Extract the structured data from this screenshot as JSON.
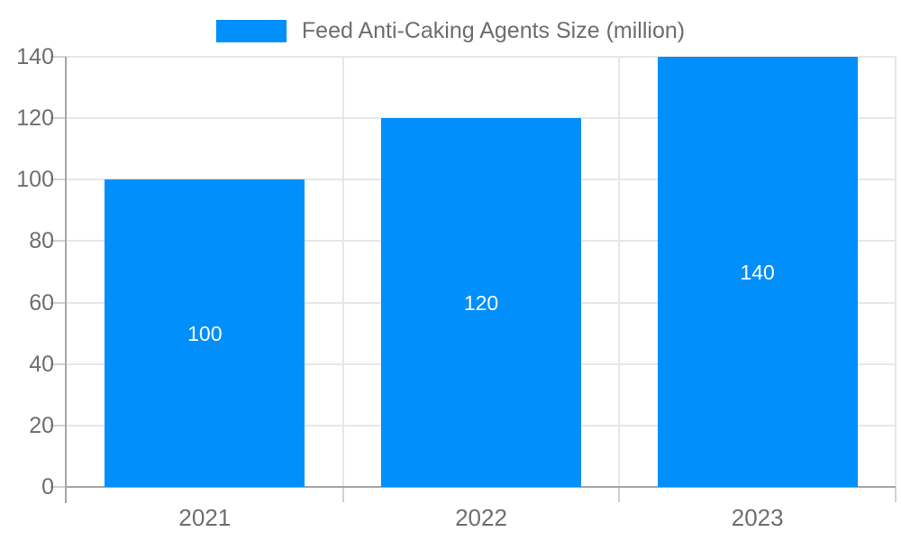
{
  "colors": {
    "bar": "#008FFB",
    "grid": "#E7E7E7",
    "axis": "#A6A6A6",
    "tick": "#D2D2D2",
    "text": "#6E6E6E",
    "value_label": "#FFFFFF",
    "background": "#FFFFFF"
  },
  "legend": {
    "label": "Feed Anti-Caking Agents Size (million)",
    "swatch_color": "#008FFB"
  },
  "chart_data": {
    "type": "bar",
    "title": "Feed Anti-Caking Agents Size (million)",
    "series": [
      {
        "name": "Feed Anti-Caking Agents Size (million)",
        "values": [
          100,
          120,
          140
        ]
      }
    ],
    "categories": [
      "2021",
      "2022",
      "2023"
    ],
    "data_labels": [
      "100",
      "120",
      "140"
    ],
    "xlabel": "",
    "ylabel": "",
    "ylim": [
      0,
      140
    ],
    "yticks": [
      0,
      20,
      40,
      60,
      80,
      100,
      120,
      140
    ],
    "grid": true,
    "legend_position": "top"
  }
}
